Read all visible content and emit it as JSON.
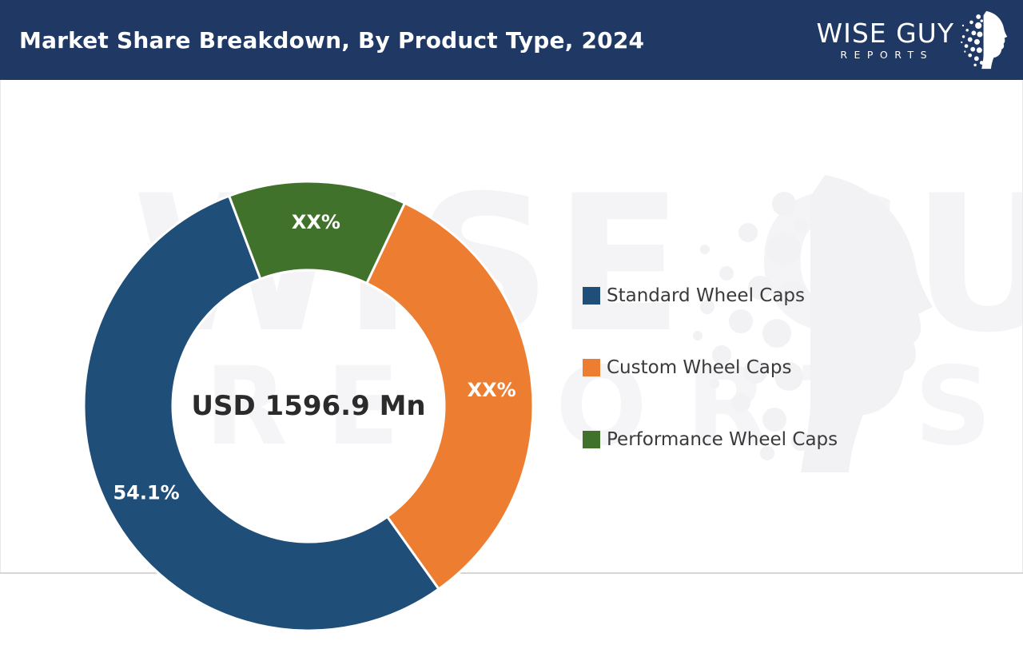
{
  "header": {
    "title": "Market Share Breakdown, By Product Type, 2024",
    "bg_color": "#1f3864",
    "logo": {
      "line1": "WISE GUY",
      "line2": "REPORTS"
    }
  },
  "chart_data": {
    "type": "pie",
    "subtype": "donut",
    "title": "Market Share Breakdown, By Product Type, 2024",
    "center_label": "USD 1596.9 Mn",
    "units": "percent of market share",
    "start_angle_deg": -20.7,
    "direction": "counterclockwise",
    "legend_position": "right",
    "segments": [
      {
        "name": "Standard Wheel Caps",
        "value": 54.1,
        "label": "54.1%",
        "color": "#1f4e79"
      },
      {
        "name": "Custom Wheel Caps",
        "value": 33.1,
        "label": "XX%",
        "color": "#ed7d31"
      },
      {
        "name": "Performance Wheel Caps",
        "value": 12.8,
        "label": "XX%",
        "color": "#41722b"
      }
    ]
  },
  "legend": {
    "items": [
      {
        "label": "Standard Wheel Caps",
        "color": "#1f4e79"
      },
      {
        "label": "Custom Wheel Caps",
        "color": "#ed7d31"
      },
      {
        "label": "Performance Wheel Caps",
        "color": "#41722b"
      }
    ]
  },
  "watermark": {
    "line1": "WISE GUY",
    "line2": "REPORTS"
  },
  "colors": {
    "header_bg": "#1f3864",
    "blue": "#1f4e79",
    "orange": "#ed7d31",
    "green": "#41722b",
    "center_text": "#2b2b2b",
    "legend_text": "#3a3a3a",
    "watermark": "#f4f4f6"
  }
}
